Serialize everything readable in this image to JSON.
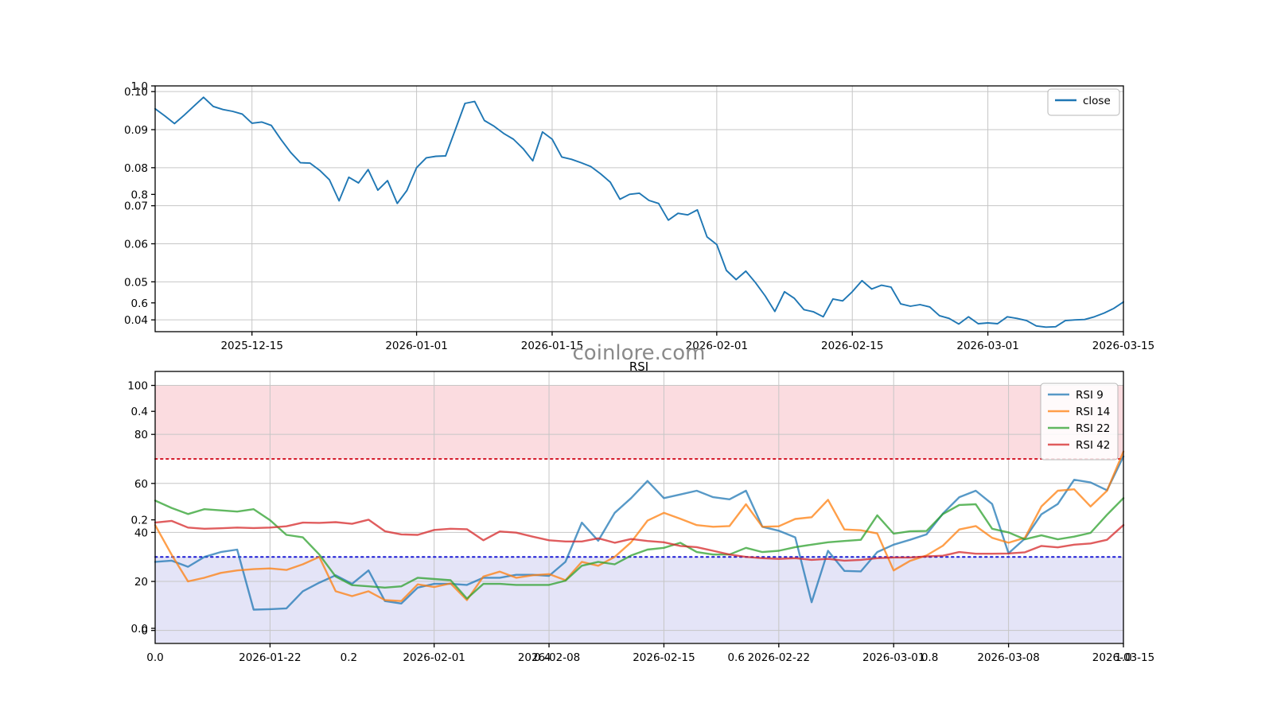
{
  "watermark": "coinlore.com",
  "chart_data": [
    {
      "type": "line",
      "title": "",
      "series": [
        {
          "name": "close",
          "color": "#1f77b4",
          "values": [
            0.0955,
            0.0936,
            0.0916,
            0.0938,
            0.0962,
            0.0985,
            0.0961,
            0.0953,
            0.0948,
            0.0941,
            0.0917,
            0.092,
            0.0911,
            0.0874,
            0.084,
            0.0813,
            0.0812,
            0.0793,
            0.0768,
            0.0713,
            0.0775,
            0.076,
            0.0795,
            0.0741,
            0.0766,
            0.0706,
            0.074,
            0.08,
            0.0826,
            0.083,
            0.0831,
            0.09,
            0.0969,
            0.0974,
            0.0924,
            0.0909,
            0.089,
            0.0875,
            0.085,
            0.0818,
            0.0894,
            0.0875,
            0.0828,
            0.0822,
            0.0813,
            0.0803,
            0.0784,
            0.0762,
            0.0717,
            0.073,
            0.0733,
            0.0714,
            0.0706,
            0.0662,
            0.068,
            0.0676,
            0.0689,
            0.0618,
            0.0598,
            0.053,
            0.0506,
            0.0528,
            0.0498,
            0.0463,
            0.0422,
            0.0474,
            0.0457,
            0.0427,
            0.0421,
            0.0408,
            0.0455,
            0.045,
            0.0474,
            0.0503,
            0.0481,
            0.0491,
            0.0486,
            0.0442,
            0.0436,
            0.044,
            0.0434,
            0.0411,
            0.0404,
            0.0389,
            0.0408,
            0.039,
            0.0392,
            0.039,
            0.0408,
            0.0404,
            0.0398,
            0.0384,
            0.0381,
            0.0382,
            0.0398,
            0.04,
            0.0401,
            0.0408,
            0.0418,
            0.043,
            0.0447
          ]
        }
      ],
      "total_days": 100,
      "ylim": [
        0.0369,
        0.1015
      ],
      "y_ticks": [
        {
          "v": 0.1,
          "label": "0.10"
        },
        {
          "v": 0.09,
          "label": "0.09"
        },
        {
          "v": 0.08,
          "label": "0.08"
        },
        {
          "v": 0.07,
          "label": "0.07"
        },
        {
          "v": 0.06,
          "label": "0.06"
        },
        {
          "v": 0.05,
          "label": "0.05"
        },
        {
          "v": 0.04,
          "label": "0.04"
        }
      ],
      "x_ticks": [
        {
          "day": 10,
          "label": "2025-12-15"
        },
        {
          "day": 27,
          "label": "2026-01-01"
        },
        {
          "day": 41,
          "label": "2026-01-15"
        },
        {
          "day": 58,
          "label": "2026-02-01"
        },
        {
          "day": 72,
          "label": "2026-02-15"
        },
        {
          "day": 86,
          "label": "2026-03-01"
        },
        {
          "day": 100,
          "label": "2026-03-15"
        }
      ],
      "legend": [
        {
          "label": "close",
          "color": "#1f77b4"
        }
      ],
      "grid": true
    },
    {
      "type": "line",
      "title": "RSI",
      "series": [
        {
          "name": "RSI 9",
          "color": "#1f77b4",
          "values": [
            28,
            28.5,
            26,
            30,
            32,
            33,
            8.5,
            8.7,
            9,
            16,
            19.5,
            22.5,
            19,
            24.5,
            12,
            11,
            17.5,
            19,
            19,
            18.6,
            21.5,
            21.5,
            22.7,
            22.7,
            22.3,
            28,
            44,
            36.6,
            48,
            54,
            61,
            54,
            55.5,
            57,
            54.4,
            53.5,
            57,
            42.3,
            40.7,
            38,
            11.5,
            32.5,
            24.3,
            24.1,
            32,
            35,
            37,
            39.2,
            47.7,
            54.4,
            57,
            51.6,
            31.5,
            37.5,
            47.4,
            51.6,
            61.5,
            60.4,
            57.2,
            71
          ]
        },
        {
          "name": "RSI 14",
          "color": "#ff7f0e",
          "values": [
            43,
            31,
            20,
            21.5,
            23.5,
            24.5,
            25,
            25.3,
            24.7,
            27,
            30,
            16,
            14,
            16,
            12.4,
            12,
            18.8,
            17.7,
            19.2,
            12.4,
            22,
            24,
            21.5,
            22.5,
            23,
            20.5,
            28,
            26.4,
            30,
            36,
            44.8,
            48,
            45.6,
            43,
            42.3,
            42.6,
            51.5,
            42.3,
            42.5,
            45.5,
            46.2,
            53.3,
            41.2,
            40.9,
            39.6,
            24.5,
            28.4,
            30.6,
            34.6,
            41.2,
            42.6,
            37.8,
            35.8,
            37.8,
            50.6,
            57,
            57.6,
            50.6,
            57,
            73
          ]
        },
        {
          "name": "RSI 22",
          "color": "#2ca02c",
          "values": [
            53,
            50,
            47.5,
            49.5,
            49,
            48.5,
            49.5,
            45,
            39,
            38,
            31,
            22,
            18.5,
            18,
            17.5,
            18,
            21.5,
            21,
            20.5,
            13,
            19,
            19,
            18.6,
            18.6,
            18.6,
            20.3,
            26.4,
            28,
            27,
            30.6,
            33,
            33.7,
            35.8,
            32,
            31,
            31,
            33.7,
            32,
            32.5,
            34,
            35,
            36,
            36.5,
            37,
            47,
            39.5,
            40.5,
            40.6,
            47.5,
            51.2,
            51.5,
            41.5,
            40,
            37.2,
            38.8,
            37.2,
            38.3,
            39.8,
            47.2,
            54
          ]
        },
        {
          "name": "RSI 42",
          "color": "#d62728",
          "values": [
            44,
            44.7,
            42,
            41.5,
            41.7,
            42,
            41.8,
            42,
            42.5,
            44,
            43.9,
            44.2,
            43.5,
            45.2,
            40.5,
            39.2,
            39,
            41,
            41.5,
            41.3,
            36.8,
            40.4,
            39.9,
            38.3,
            36.8,
            36.3,
            36.3,
            37.6,
            35.8,
            37.3,
            36.5,
            36,
            34.5,
            34,
            32.5,
            31,
            30,
            29.5,
            29.2,
            29.5,
            28.8,
            29.2,
            28.5,
            28.8,
            29.5,
            29.8,
            29.8,
            30.2,
            30.5,
            32,
            31.3,
            31.3,
            31.4,
            31.9,
            34.5,
            33.9,
            35,
            35.5,
            37,
            43
          ]
        }
      ],
      "total_days": 59,
      "ylim": [
        -5.3,
        105.7
      ],
      "y_ticks": [
        {
          "v": 100,
          "label": "100"
        },
        {
          "v": 80,
          "label": "80"
        },
        {
          "v": 60,
          "label": "60"
        },
        {
          "v": 40,
          "label": "40"
        },
        {
          "v": 20,
          "label": "20"
        },
        {
          "v": 0,
          "label": "0"
        }
      ],
      "x_ticks": [
        {
          "day": 7,
          "label": "2026-01-22"
        },
        {
          "day": 17,
          "label": "2026-02-01"
        },
        {
          "day": 24,
          "label": "2026-02-08"
        },
        {
          "day": 31,
          "label": "2026-02-15"
        },
        {
          "day": 38,
          "label": "2026-02-22"
        },
        {
          "day": 45,
          "label": "2026-03-01"
        },
        {
          "day": 52,
          "label": "2026-03-08"
        },
        {
          "day": 59,
          "label": "2026-03-15"
        }
      ],
      "legend": [
        {
          "label": "RSI 9",
          "color": "#1f77b4"
        },
        {
          "label": "RSI 14",
          "color": "#ff7f0e"
        },
        {
          "label": "RSI 22",
          "color": "#2ca02c"
        },
        {
          "label": "RSI 42",
          "color": "#d62728"
        }
      ],
      "bands": [
        {
          "from": 70,
          "to": 100,
          "color": "#fbdce0",
          "name": "overbought-band"
        },
        {
          "from": 0,
          "to": 30,
          "color": "#e4e4f7",
          "name": "oversold-band"
        }
      ],
      "ref_lines": [
        {
          "v": 70,
          "color": "#d41a2a",
          "name": "overbought-threshold"
        },
        {
          "v": 30,
          "color": "#1a1ad4",
          "name": "oversold-threshold"
        }
      ],
      "grid": true
    }
  ],
  "overlay_axis": {
    "x_ticks": [
      {
        "f": 0.0,
        "label": "0.0"
      },
      {
        "f": 0.2,
        "label": "0.2"
      },
      {
        "f": 0.4,
        "label": "0.4"
      },
      {
        "f": 0.6,
        "label": "0.6"
      },
      {
        "f": 0.8,
        "label": "0.8"
      },
      {
        "f": 1.0,
        "label": "1.0"
      }
    ],
    "y_ticks": [
      {
        "f": 1.0,
        "label": "1.0"
      },
      {
        "f": 0.8,
        "label": "0.8"
      },
      {
        "f": 0.6,
        "label": "0.6"
      },
      {
        "f": 0.4,
        "label": "0.4"
      },
      {
        "f": 0.2,
        "label": "0.2"
      },
      {
        "f": 0.0,
        "label": "0.0"
      }
    ]
  },
  "style": {
    "grid_color": "#c6c6c6",
    "spine_color": "#000000",
    "tick_color": "#000000"
  }
}
